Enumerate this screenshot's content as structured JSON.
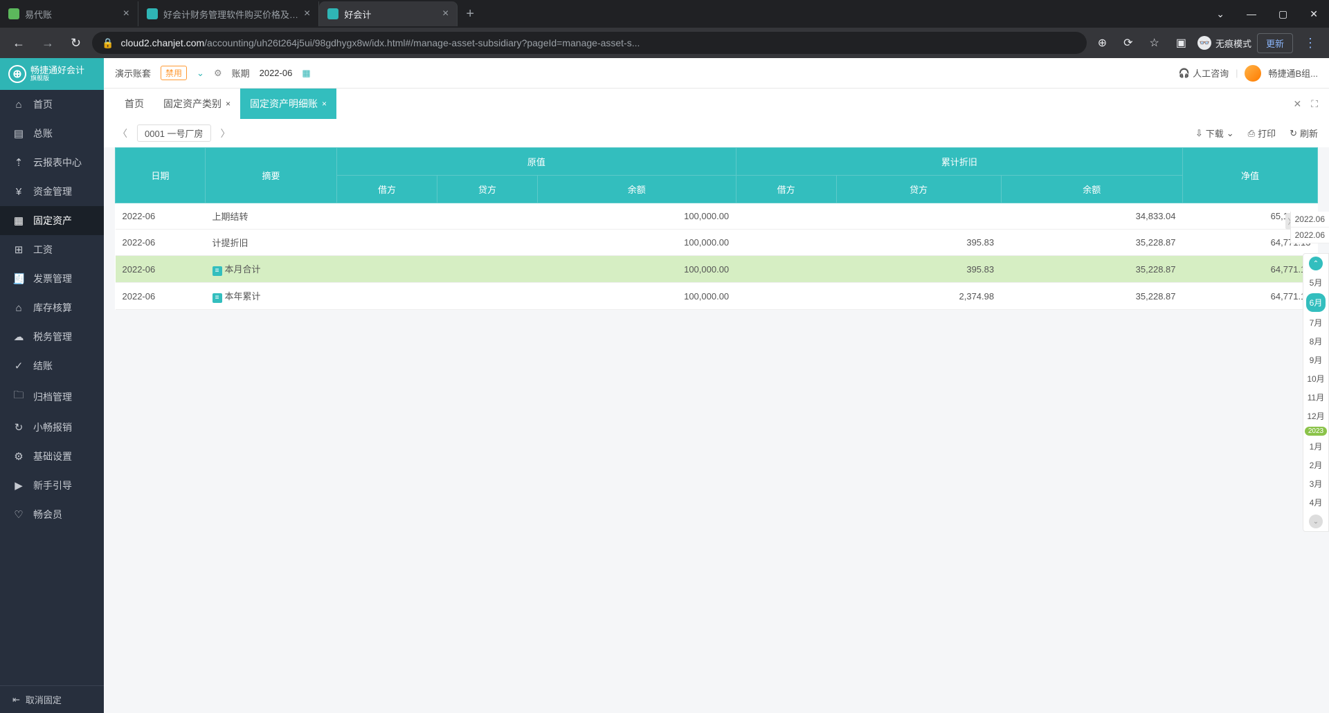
{
  "browser": {
    "tabs": [
      {
        "title": "易代账",
        "favicon": "green"
      },
      {
        "title": "好会计财务管理软件购买价格及…",
        "favicon": "teal"
      },
      {
        "title": "好会计",
        "favicon": "teal",
        "active": true
      }
    ],
    "url_domain": "cloud2.chanjet.com",
    "url_path": "/accounting/uh26t264j5ui/98gdhygx8w/idx.html#/manage-asset-subsidiary?pageId=manage-asset-s...",
    "incognito_label": "无痕模式",
    "update_label": "更新"
  },
  "app": {
    "logo_main": "畅捷通好会计",
    "logo_sub": "旗舰版",
    "sidebar": [
      {
        "icon": "⌂",
        "label": "首页"
      },
      {
        "icon": "▤",
        "label": "总账"
      },
      {
        "icon": "⇡",
        "label": "云报表中心"
      },
      {
        "icon": "¥",
        "label": "资金管理"
      },
      {
        "icon": "▦",
        "label": "固定资产",
        "active": true
      },
      {
        "icon": "⊞",
        "label": "工资"
      },
      {
        "icon": "🧾",
        "label": "发票管理"
      },
      {
        "icon": "⌂",
        "label": "库存核算"
      },
      {
        "icon": "☁",
        "label": "税务管理"
      },
      {
        "icon": "✓",
        "label": "结账"
      },
      {
        "icon": "🗀",
        "label": "归档管理"
      },
      {
        "icon": "↻",
        "label": "小畅报销"
      },
      {
        "icon": "⚙",
        "label": "基础设置"
      },
      {
        "icon": "▶",
        "label": "新手引导"
      },
      {
        "icon": "♡",
        "label": "畅会员"
      }
    ],
    "sidebar_footer": "取消固定",
    "topbar": {
      "account": "演示账套",
      "badge": "禁用",
      "period_label": "账期",
      "period_value": "2022-06",
      "support": "人工咨询",
      "user": "畅捷通B组..."
    },
    "tabs": [
      {
        "label": "首页"
      },
      {
        "label": "固定资产类别",
        "closable": true
      },
      {
        "label": "固定资产明细账",
        "closable": true,
        "active": true
      }
    ],
    "toolbar": {
      "asset": "0001  一号厂房",
      "download": "下载",
      "print": "打印",
      "refresh": "刷新"
    },
    "table": {
      "header_groups": {
        "orig": "原值",
        "depr": "累计折旧"
      },
      "columns": {
        "date": "日期",
        "summary": "摘要",
        "debit": "借方",
        "credit": "贷方",
        "balance": "余额",
        "net": "净值"
      },
      "rows": [
        {
          "date": "2022-06",
          "summary": "上期结转",
          "orig_balance": "100,000.00",
          "depr_balance": "34,833.04",
          "net": "65,166.96"
        },
        {
          "date": "2022-06",
          "summary": "计提折旧",
          "orig_balance": "100,000.00",
          "depr_credit": "395.83",
          "depr_balance": "35,228.87",
          "net": "64,771.13"
        },
        {
          "date": "2022-06",
          "summary": "本月合计",
          "icon": true,
          "hl": true,
          "orig_balance": "100,000.00",
          "depr_credit": "395.83",
          "depr_balance": "35,228.87",
          "net": "64,771.13"
        },
        {
          "date": "2022-06",
          "summary": "本年累计",
          "icon": true,
          "orig_balance": "100,000.00",
          "depr_credit": "2,374.98",
          "depr_balance": "35,228.87",
          "net": "64,771.13"
        }
      ]
    },
    "year_rail": [
      "2022.06",
      "2022.06"
    ],
    "month_rail": {
      "months": [
        "5月",
        "6月",
        "7月",
        "8月",
        "9月",
        "10月",
        "11月",
        "12月"
      ],
      "active": "6月",
      "year_pill": "2023",
      "months2": [
        "1月",
        "2月",
        "3月",
        "4月"
      ]
    }
  }
}
